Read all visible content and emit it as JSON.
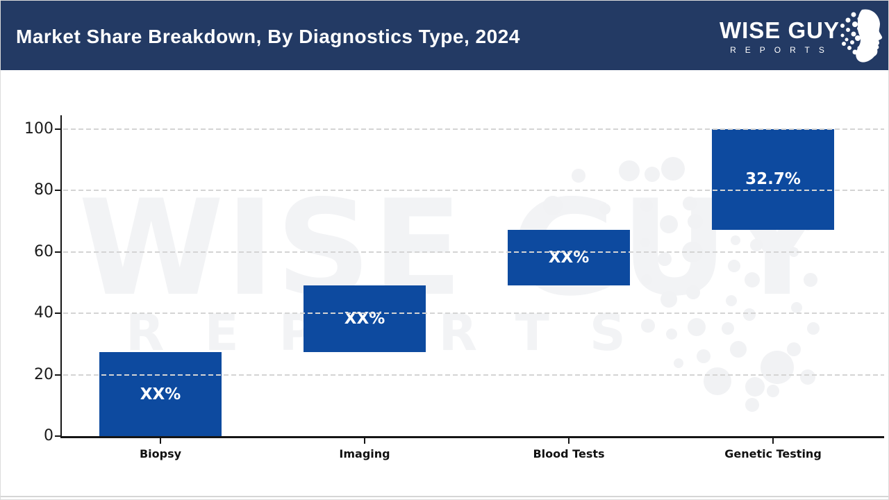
{
  "header": {
    "title": "Market Share Breakdown, By Diagnostics Type, 2024",
    "background_color": "#233a64",
    "logo": {
      "line1": "WISE GUY",
      "line2": "REPORTS"
    }
  },
  "watermark": {
    "line1": "WISE GUY",
    "line2": "REPORTS"
  },
  "chart_data": {
    "type": "bar",
    "subtype": "waterfall-floating-bars",
    "title": "Market Share Breakdown, By Diagnostics Type, 2024",
    "xlabel": "",
    "ylabel": "",
    "categories": [
      "Biopsy",
      "Imaging",
      "Blood Tests",
      "Genetic Testing"
    ],
    "segments": [
      {
        "category": "Biopsy",
        "start": 0,
        "end": 27.3,
        "label": "XX%"
      },
      {
        "category": "Imaging",
        "start": 27.3,
        "end": 49.2,
        "label": "XX%"
      },
      {
        "category": "Blood Tests",
        "start": 49.2,
        "end": 67.3,
        "label": "XX%"
      },
      {
        "category": "Genetic Testing",
        "start": 67.3,
        "end": 100,
        "label": "32.7%"
      }
    ],
    "yticks": [
      0,
      20,
      40,
      60,
      80,
      100
    ],
    "ylim": [
      0,
      105
    ],
    "grid": true,
    "grid_style": "dashed",
    "grid_color": "#d4d4d4",
    "bar_color": "#0d4a9f",
    "bar_label_color": "#ffffff",
    "legend": "none"
  }
}
